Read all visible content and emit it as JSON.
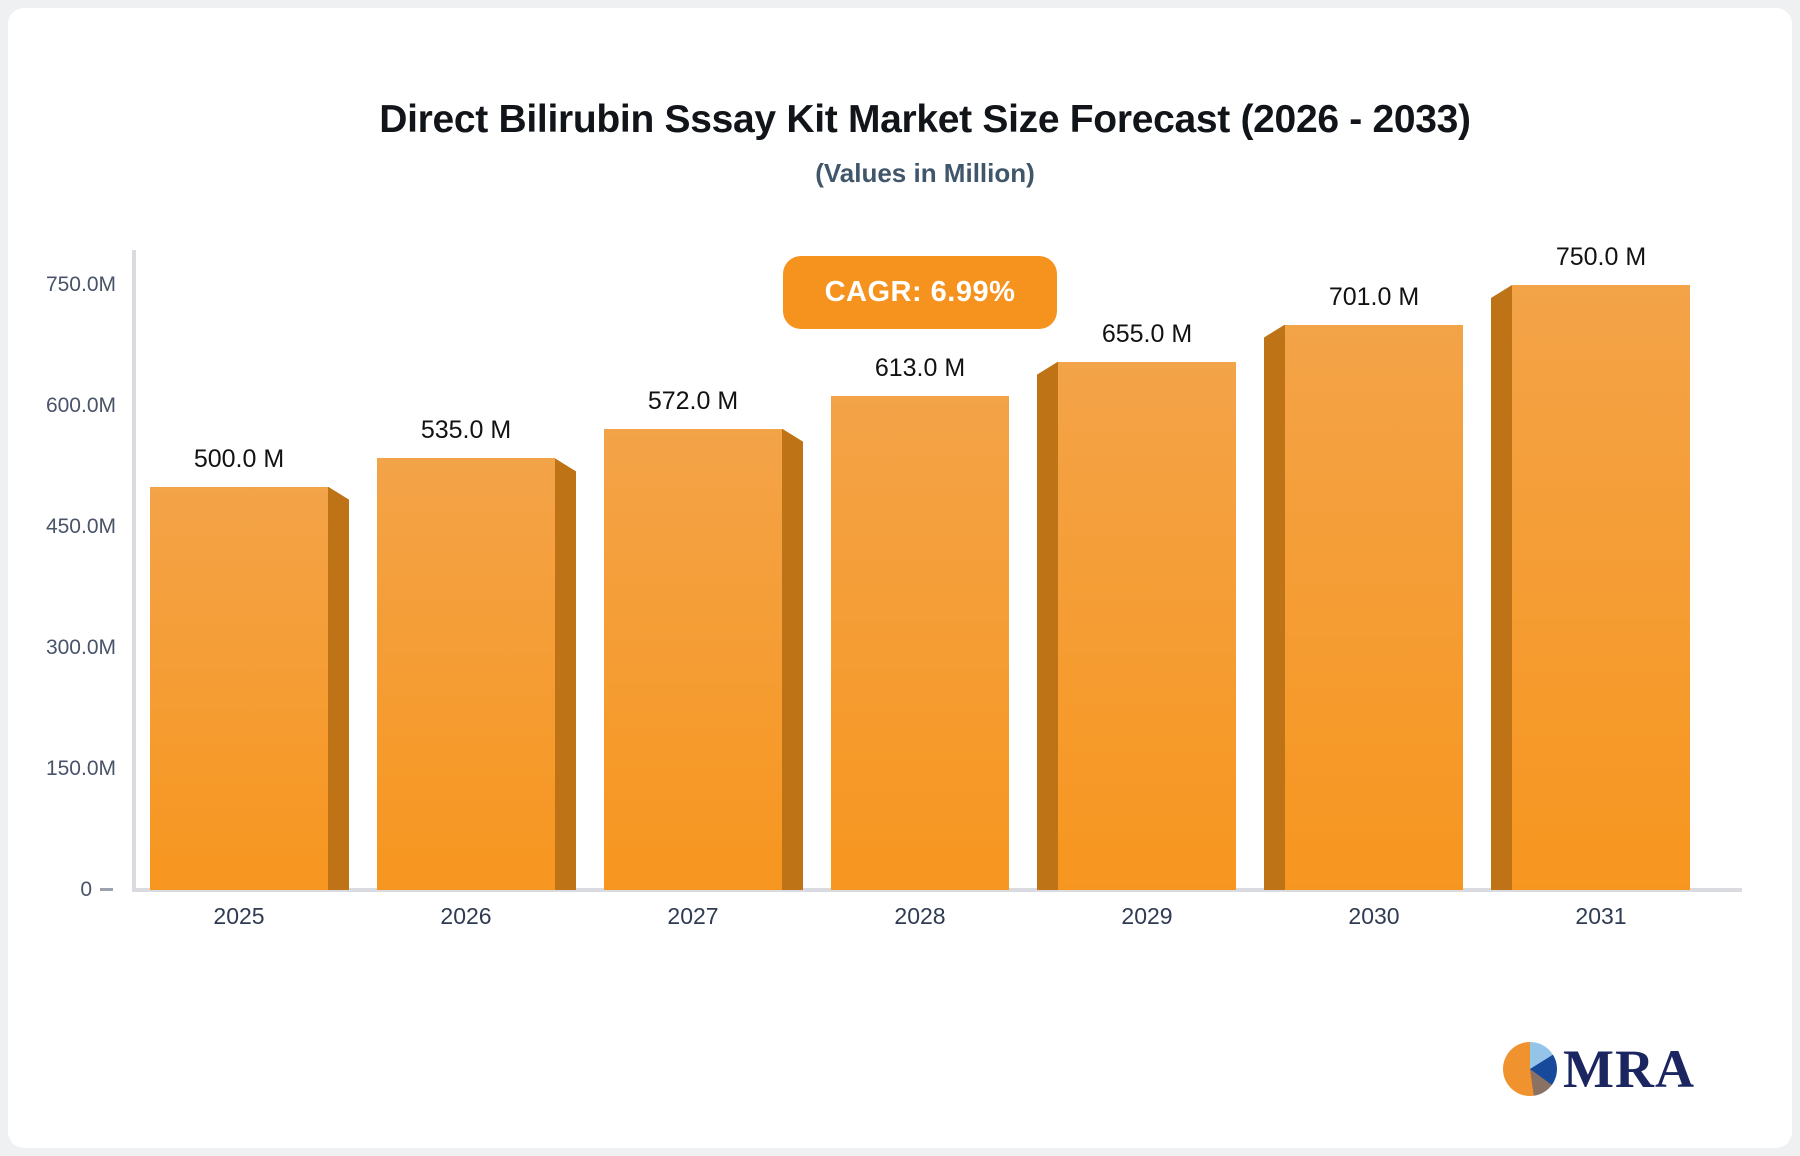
{
  "header": {
    "title": "Direct Bilirubin Sssay Kit Market Size Forecast (2026 - 2033)",
    "subtitle": "(Values in Million)"
  },
  "badge": {
    "label": "CAGR: 6.99%"
  },
  "logo": {
    "text": "MRA"
  },
  "colors": {
    "badge_bg": "#f6921e",
    "bar_front_top": "#f3a348",
    "bar_front_bottom": "#f7961f",
    "bar_side": "#be7316",
    "axis_line": "#d9dbe1",
    "tick_dash": "#9aa2ae",
    "y_label": "#49536a",
    "x_label": "#2f3b52",
    "value_label": "#121212",
    "title": "#111418",
    "subtitle": "#40566b",
    "logo_text": "#1b2661",
    "logo_pie_orange": "#f0922d",
    "logo_pie_lightblue": "#94c5e8",
    "logo_pie_darkblue": "#174a9b",
    "logo_pie_brown": "#8a7163"
  },
  "chart_data": {
    "type": "bar",
    "title": "Direct Bilirubin Sssay Kit Market Size Forecast (2026 - 2033)",
    "subtitle": "(Values in Million)",
    "annotation": "CAGR: 6.99%",
    "categories": [
      "2025",
      "2026",
      "2027",
      "2028",
      "2029",
      "2030",
      "2031"
    ],
    "values": [
      500,
      535,
      572,
      613,
      655,
      701,
      750
    ],
    "value_labels": [
      "500.0 M",
      "535.0 M",
      "572.0 M",
      "613.0 M",
      "655.0 M",
      "701.0 M",
      "750.0 M"
    ],
    "unit": "Million",
    "xlabel": "",
    "ylabel": "",
    "ylim": [
      0,
      750
    ],
    "grid": false,
    "legend": false,
    "effect": "3d-perspective-bars",
    "y_ticks": [
      {
        "label": "750.0M",
        "value": 750
      },
      {
        "label": "600.0M",
        "value": 600
      },
      {
        "label": "450.0M",
        "value": 450
      },
      {
        "label": "300.0M",
        "value": 300
      },
      {
        "label": "150.0M",
        "value": 150
      },
      {
        "label": "0",
        "value": 0
      }
    ]
  }
}
